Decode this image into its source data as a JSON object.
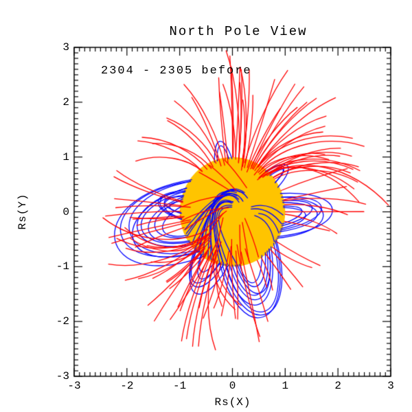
{
  "chart_data": {
    "type": "line",
    "description": "Solar coronal magnetic field line map viewed from above the north pole. Yellow disk is the Sun (radius 1 Rs); red curves are open field lines, blue curves are closed loops.",
    "title": "North Pole View",
    "annotation": "2304 - 2305 before",
    "xlabel": "Rs(X)",
    "ylabel": "Rs(Y)",
    "xlim": [
      -3,
      3
    ],
    "ylim": [
      -3,
      3
    ],
    "xticks": [
      -3,
      -2,
      -1,
      0,
      1,
      2,
      3
    ],
    "yticks": [
      -3,
      -2,
      -1,
      0,
      1,
      2,
      3
    ],
    "minor_per_major": 10,
    "grid": false,
    "background": "#ffffff",
    "frame_color": "#000000",
    "sun": {
      "center": [
        0,
        0
      ],
      "radius": 1,
      "color": "#FFC400"
    },
    "line_colors": {
      "open": "#FF0000",
      "closed": "#0000FF"
    },
    "seed": 1337,
    "open_bundles": [
      {
        "name": "top-right-fan",
        "n": 30,
        "foot": [
          84,
          46
        ],
        "end": [
          97,
          6
        ],
        "r": [
          2.0,
          3.0
        ],
        "r0": [
          0.75,
          1.0
        ],
        "jitter": 7
      },
      {
        "name": "right-upper-long",
        "n": 5,
        "foot": [
          44,
          36
        ],
        "end": [
          30,
          13
        ],
        "r": [
          2.25,
          2.65
        ],
        "jitter": 4
      },
      {
        "name": "top-left-spray",
        "n": 11,
        "foot": [
          128,
          94
        ],
        "end": [
          155,
          92
        ],
        "r": [
          1.9,
          2.8
        ],
        "r0": [
          0.85,
          1.0
        ],
        "jitter": 9
      },
      {
        "name": "top-tall",
        "n": 3,
        "foot": [
          90,
          86
        ],
        "end": [
          93,
          85
        ],
        "r": [
          2.6,
          2.95
        ],
        "jitter": 3
      },
      {
        "name": "left-horizontal",
        "n": 11,
        "foot": [
          168,
          197
        ],
        "end": [
          162,
          202
        ],
        "r": [
          1.8,
          2.5
        ],
        "r0": [
          0.8,
          1.0
        ],
        "jitter": 6
      },
      {
        "name": "bottom-left-fan",
        "n": 28,
        "foot": [
          214,
          252
        ],
        "end": [
          186,
          272
        ],
        "r": [
          1.7,
          2.6
        ],
        "r0": [
          0.55,
          1.0
        ],
        "jitter": 7
      },
      {
        "name": "bottom-down",
        "n": 8,
        "foot": [
          258,
          288
        ],
        "end": [
          256,
          290
        ],
        "r": [
          1.7,
          2.45
        ],
        "r0": [
          0.5,
          1.0
        ],
        "jitter": 5
      },
      {
        "name": "right-horizontal",
        "n": 7,
        "foot": [
          -10,
          20
        ],
        "end": [
          -12,
          16
        ],
        "r": [
          1.8,
          2.55
        ],
        "jitter": 6
      },
      {
        "name": "bottom-right-spray",
        "n": 6,
        "foot": [
          300,
          326
        ],
        "end": [
          294,
          332
        ],
        "r": [
          1.5,
          2.1
        ],
        "jitter": 6
      }
    ],
    "loop_bundles": [
      {
        "name": "left-large",
        "n": 9,
        "base": 188,
        "sep": [
          34,
          95
        ],
        "apex": [
          1.25,
          2.35
        ],
        "tilt": 6,
        "jitter": 7
      },
      {
        "name": "left-small",
        "n": 5,
        "base": 174,
        "sep": [
          14,
          34
        ],
        "apex": [
          1.06,
          1.32
        ],
        "tilt": 0,
        "jitter": 6
      },
      {
        "name": "bottom-right-loops",
        "n": 9,
        "base": 293,
        "sep": [
          28,
          76
        ],
        "apex": [
          1.2,
          2.05
        ],
        "tilt": -8,
        "jitter": 7
      },
      {
        "name": "bottom-left-loops",
        "n": 5,
        "base": 243,
        "sep": [
          16,
          42
        ],
        "apex": [
          1.1,
          1.5
        ],
        "tilt": 0,
        "jitter": 6
      },
      {
        "name": "right-loops",
        "n": 7,
        "base": 356,
        "sep": [
          18,
          48
        ],
        "apex": [
          1.15,
          1.8
        ],
        "tilt": 8,
        "jitter": 6
      },
      {
        "name": "top-small-loop",
        "n": 2,
        "base": 100,
        "sep": [
          13,
          20
        ],
        "apex": [
          1.07,
          1.16
        ],
        "tilt": 0,
        "jitter": 3
      },
      {
        "name": "topright-small-loops",
        "n": 3,
        "base": 40,
        "sep": [
          10,
          22
        ],
        "apex": [
          1.05,
          1.18
        ],
        "tilt": 0,
        "jitter": 4
      }
    ],
    "face_bundles": [
      {
        "name": "face-swirl-blue",
        "color": "closed",
        "n": 13,
        "a_start": [
          40,
          110
        ],
        "a_end": [
          200,
          262
        ],
        "r_start": [
          0.15,
          0.45
        ],
        "bend": -28,
        "jitter": 8
      },
      {
        "name": "face-right-blue",
        "color": "closed",
        "n": 4,
        "a_start": [
          15,
          -10
        ],
        "a_end": [
          -5,
          -35
        ],
        "r_start": [
          0.3,
          0.55
        ],
        "bend": 10,
        "jitter": 5
      },
      {
        "name": "face-down-blue",
        "color": "closed",
        "n": 3,
        "a_start": [
          85,
          100
        ],
        "a_end": [
          258,
          275
        ],
        "r_start": [
          0.08,
          0.2
        ],
        "bend": -18,
        "jitter": 6
      },
      {
        "name": "face-left-red",
        "color": "open",
        "n": 6,
        "a_start": [
          120,
          210
        ],
        "a_end": [
          175,
          245
        ],
        "r_start": [
          0.1,
          0.35
        ],
        "bend": 12,
        "jitter": 10
      },
      {
        "name": "face-top-red",
        "color": "open",
        "n": 3,
        "a_start": [
          60,
          100
        ],
        "a_end": [
          100,
          130
        ],
        "r_start": [
          0.35,
          0.55
        ],
        "bend": 8,
        "jitter": 6
      },
      {
        "name": "face-center-red",
        "color": "open",
        "n": 3,
        "a_start": [
          300,
          330
        ],
        "a_end": [
          280,
          300
        ],
        "r_start": [
          0.15,
          0.3
        ],
        "bend": -8,
        "jitter": 6
      }
    ]
  }
}
